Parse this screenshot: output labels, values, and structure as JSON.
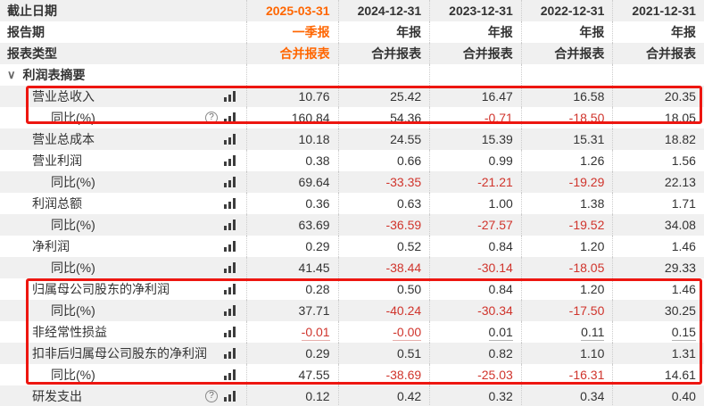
{
  "colors": {
    "accent_orange": "#ff6600",
    "negative_red": "#d0342c",
    "annotation_red": "#ed1610",
    "stripe_gray": "#f0f0f0",
    "text": "#333333"
  },
  "icons": {
    "help_glyph": "?",
    "chevron_down_glyph": "∨"
  },
  "table": {
    "header_rows": [
      {
        "label": "截止日期",
        "values": [
          "2025-03-31",
          "2024-12-31",
          "2023-12-31",
          "2022-12-31",
          "2021-12-31"
        ]
      },
      {
        "label": "报告期",
        "values": [
          "一季报",
          "年报",
          "年报",
          "年报",
          "年报"
        ]
      },
      {
        "label": "报表类型",
        "values": [
          "合并报表",
          "合并报表",
          "合并报表",
          "合并报表",
          "合并报表"
        ]
      }
    ],
    "section": {
      "title": "利润表摘要"
    },
    "rows": [
      {
        "label": "营业总收入",
        "indent": 1,
        "icons": [
          "bars"
        ],
        "underline": false,
        "values": [
          "10.76",
          "25.42",
          "16.47",
          "16.58",
          "20.35"
        ]
      },
      {
        "label": "同比(%)",
        "indent": 2,
        "icons": [
          "help",
          "bars"
        ],
        "underline": false,
        "values": [
          "160.84",
          "54.36",
          "-0.71",
          "-18.50",
          "18.05"
        ]
      },
      {
        "label": "营业总成本",
        "indent": 1,
        "icons": [
          "bars"
        ],
        "underline": false,
        "values": [
          "10.18",
          "24.55",
          "15.39",
          "15.31",
          "18.82"
        ]
      },
      {
        "label": "营业利润",
        "indent": 1,
        "icons": [
          "bars"
        ],
        "underline": false,
        "values": [
          "0.38",
          "0.66",
          "0.99",
          "1.26",
          "1.56"
        ]
      },
      {
        "label": "同比(%)",
        "indent": 2,
        "icons": [
          "bars"
        ],
        "underline": false,
        "values": [
          "69.64",
          "-33.35",
          "-21.21",
          "-19.29",
          "22.13"
        ]
      },
      {
        "label": "利润总额",
        "indent": 1,
        "icons": [
          "bars"
        ],
        "underline": false,
        "values": [
          "0.36",
          "0.63",
          "1.00",
          "1.38",
          "1.71"
        ]
      },
      {
        "label": "同比(%)",
        "indent": 2,
        "icons": [
          "bars"
        ],
        "underline": false,
        "values": [
          "63.69",
          "-36.59",
          "-27.57",
          "-19.52",
          "34.08"
        ]
      },
      {
        "label": "净利润",
        "indent": 1,
        "icons": [
          "bars"
        ],
        "underline": false,
        "values": [
          "0.29",
          "0.52",
          "0.84",
          "1.20",
          "1.46"
        ]
      },
      {
        "label": "同比(%)",
        "indent": 2,
        "icons": [
          "bars"
        ],
        "underline": false,
        "values": [
          "41.45",
          "-38.44",
          "-30.14",
          "-18.05",
          "29.33"
        ]
      },
      {
        "label": "归属母公司股东的净利润",
        "indent": 1,
        "icons": [
          "bars"
        ],
        "underline": false,
        "values": [
          "0.28",
          "0.50",
          "0.84",
          "1.20",
          "1.46"
        ]
      },
      {
        "label": "同比(%)",
        "indent": 2,
        "icons": [
          "bars"
        ],
        "underline": false,
        "values": [
          "37.71",
          "-40.24",
          "-30.34",
          "-17.50",
          "30.25"
        ]
      },
      {
        "label": "非经常性损益",
        "indent": 1,
        "icons": [
          "bars"
        ],
        "underline": true,
        "values": [
          "-0.01",
          "-0.00",
          "0.01",
          "0.11",
          "0.15"
        ]
      },
      {
        "label": "扣非后归属母公司股东的净利润",
        "indent": 1,
        "icons": [
          "bars"
        ],
        "underline": false,
        "values": [
          "0.29",
          "0.51",
          "0.82",
          "1.10",
          "1.31"
        ]
      },
      {
        "label": "同比(%)",
        "indent": 2,
        "icons": [
          "bars"
        ],
        "underline": false,
        "values": [
          "47.55",
          "-38.69",
          "-25.03",
          "-16.31",
          "14.61"
        ]
      },
      {
        "label": "研发支出",
        "indent": 1,
        "icons": [
          "help",
          "bars"
        ],
        "underline": false,
        "values": [
          "0.12",
          "0.42",
          "0.32",
          "0.34",
          "0.40"
        ]
      }
    ]
  }
}
